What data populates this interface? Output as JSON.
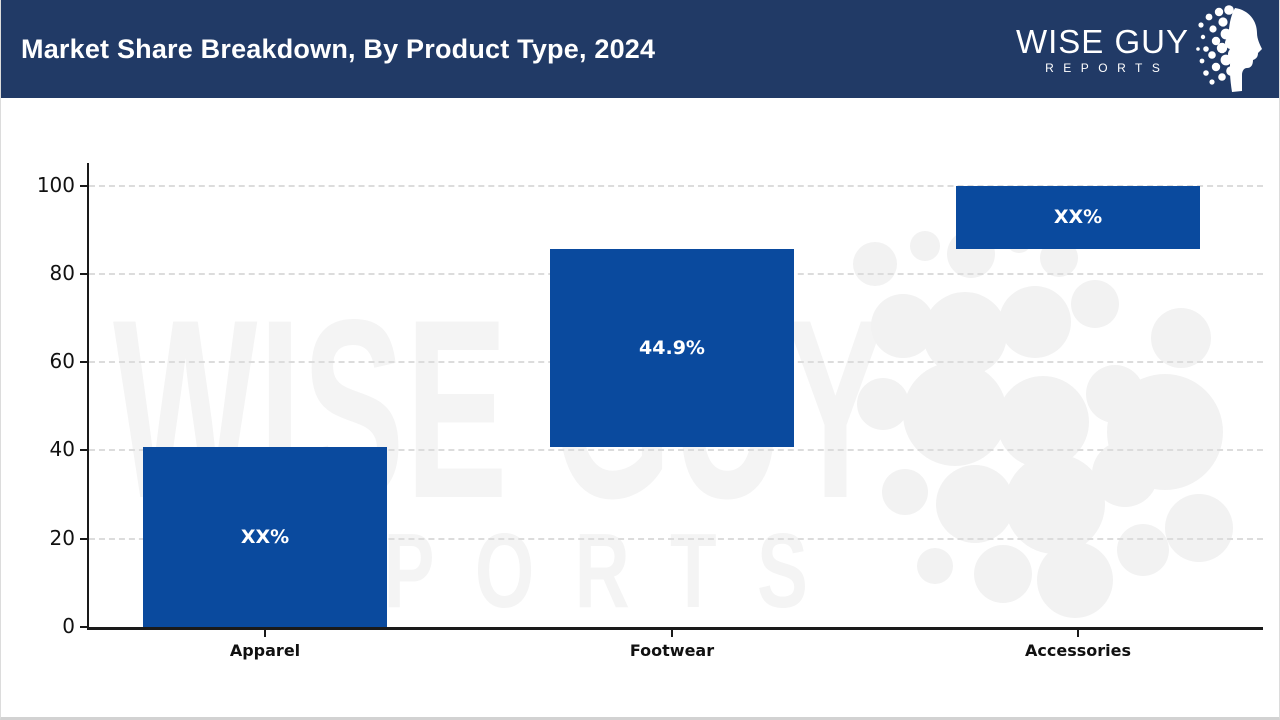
{
  "page": {
    "background": "#ffffff",
    "edge_color": "#d2d2d2"
  },
  "header": {
    "background": "#213a66",
    "title": "Market Share Breakdown, By Product Type, 2024",
    "logo": {
      "name": "WISE GUY",
      "sub": "REPORTS"
    }
  },
  "watermark": {
    "line1": "WISE GUY",
    "line2": "REPORTS"
  },
  "chart_data": {
    "type": "bar",
    "subtype": "stacked-waterfall-percentage",
    "title": "Market Share Breakdown, By Product Type, 2024",
    "categories": [
      "Apparel",
      "Footwear",
      "Accessories"
    ],
    "segments": [
      {
        "category": "Apparel",
        "start": 0,
        "end": 40.7,
        "value": 40.7,
        "label": "XX%"
      },
      {
        "category": "Footwear",
        "start": 40.7,
        "end": 85.6,
        "value": 44.9,
        "label": "44.9%"
      },
      {
        "category": "Accessories",
        "start": 85.6,
        "end": 100,
        "value": 14.4,
        "label": "XX%"
      }
    ],
    "xlabel": "",
    "ylabel": "",
    "ylim": [
      0,
      100
    ],
    "yticks": [
      0,
      20,
      40,
      60,
      80,
      100
    ],
    "grid": {
      "horizontal": true,
      "style": "dashed",
      "color": "#dcdcdc"
    },
    "legend": "none",
    "bar_color": "#0a4a9e",
    "bar_label_color": "#ffffff",
    "axis_color": "#1a1a1a",
    "tick_label_color": "#111111"
  }
}
